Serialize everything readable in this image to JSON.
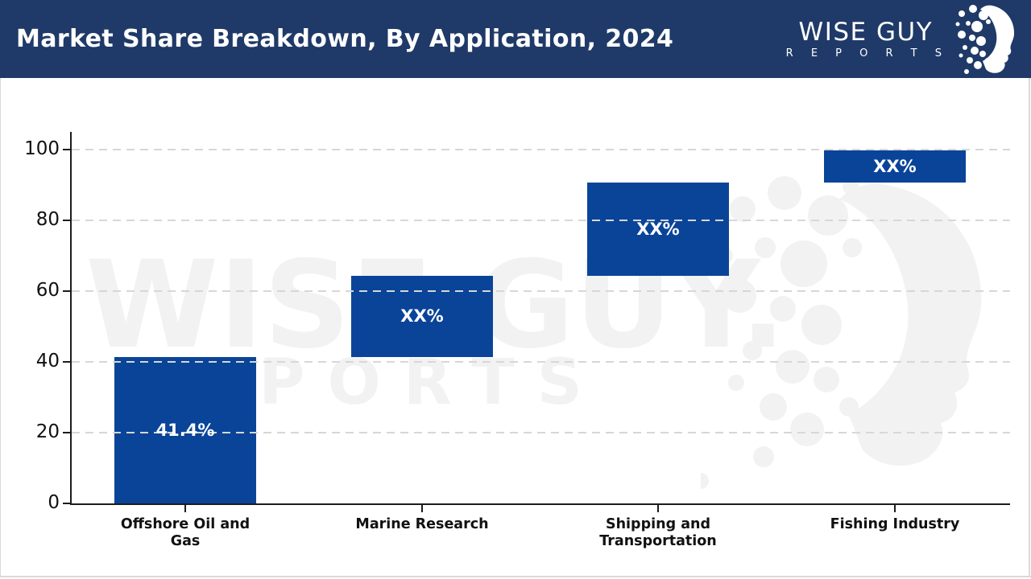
{
  "header": {
    "title": "Market Share Breakdown, By Application, 2024",
    "logo": {
      "name": "WISE GUY",
      "subtitle": "R E P O R T S"
    }
  },
  "watermark": {
    "line1": "WISE GUY.",
    "line2": "REPORTS"
  },
  "colors": {
    "header_bg": "#1f3a68",
    "bar": "#0a4499",
    "bar_label": "#ffffff",
    "axis": "#1c1c1c",
    "gridline": "#d7d7d7",
    "watermark": "#f2f2f2"
  },
  "chart_data": {
    "type": "bar",
    "subtype": "waterfall",
    "title": "Market Share Breakdown, By Application, 2024",
    "categories": [
      "Offshore Oil and Gas",
      "Marine Research",
      "Shipping and Transportation",
      "Fishing Industry"
    ],
    "category_lines": [
      [
        "Offshore Oil and",
        "Gas"
      ],
      [
        "Marine Research"
      ],
      [
        "Shipping and",
        "Transportation"
      ],
      [
        "Fishing Industry"
      ]
    ],
    "segments": [
      {
        "category": "Offshore Oil and Gas",
        "start": 0,
        "end": 41.4,
        "value": 41.4,
        "label": "41.4%"
      },
      {
        "category": "Marine Research",
        "start": 41.4,
        "end": 64.4,
        "value": 23.0,
        "label": "XX%"
      },
      {
        "category": "Shipping and Transportation",
        "start": 64.4,
        "end": 90.7,
        "value": 26.3,
        "label": "XX%"
      },
      {
        "category": "Fishing Industry",
        "start": 90.7,
        "end": 99.7,
        "value": 9.0,
        "label": "XX%"
      }
    ],
    "xlabel": "",
    "ylabel": "",
    "y_ticks": [
      0,
      20,
      40,
      60,
      80,
      100
    ],
    "ylim": [
      0,
      105
    ],
    "grid": true,
    "grid_style": "dashed",
    "legend": false
  }
}
